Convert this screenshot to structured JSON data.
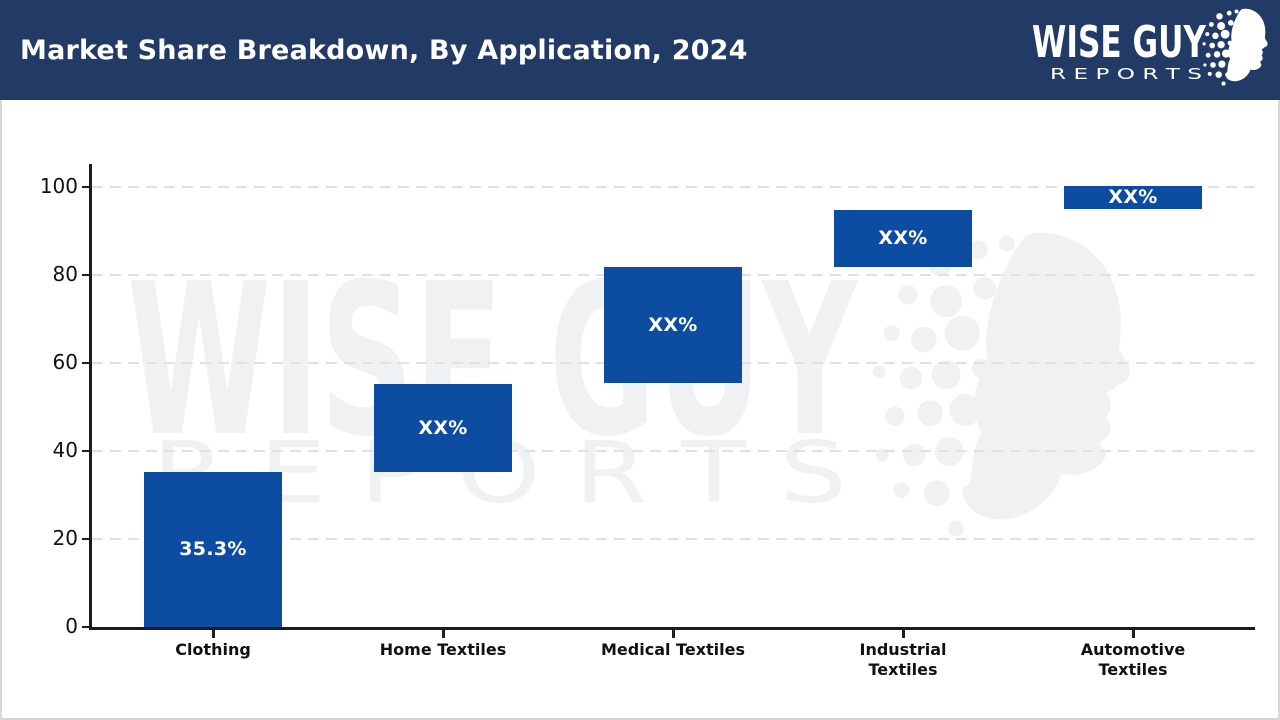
{
  "header": {
    "title": "Market Share Breakdown, By Application, 2024",
    "logo": {
      "primary": "WISE GUY",
      "secondary": "R E P O R T S"
    }
  },
  "watermark": {
    "primary": "WISE GUY",
    "secondary": "R E P O R T S"
  },
  "colors": {
    "header_bg": "#213a66",
    "bar_fill": "#0c4da2",
    "bar_label_text": "#ffffff",
    "grid_line": "#e1e1e1",
    "axis_line": "#1c1c1c",
    "tick_label_text": "#111111",
    "watermark_fill": "#f0f1f3",
    "background": "#ffffff"
  },
  "chart_data": {
    "type": "bar",
    "subtype": "waterfall",
    "title": "Market Share Breakdown, By Application, 2024",
    "xlabel": "",
    "ylabel": "",
    "ylim": [
      0,
      105
    ],
    "y_ticks": [
      0,
      20,
      40,
      60,
      80,
      100
    ],
    "grid": "horizontal-dashed",
    "legend": "none",
    "categories": [
      "Clothing",
      "Home Textiles",
      "Medical Textiles",
      "Industrial Textiles",
      "Automotive Textiles"
    ],
    "x_tick_labels": [
      "Clothing",
      "Home Textiles",
      "Medical Textiles",
      "Industrial\nTextiles",
      "Automotive\nTextiles"
    ],
    "segments": [
      {
        "category": "Clothing",
        "start": 0,
        "end": 35.3,
        "value_label": "35.3%"
      },
      {
        "category": "Home Textiles",
        "start": 35.3,
        "end": 55.2,
        "value_label": "XX%"
      },
      {
        "category": "Medical Textiles",
        "start": 55.4,
        "end": 81.8,
        "value_label": "XX%"
      },
      {
        "category": "Industrial Textiles",
        "start": 81.8,
        "end": 94.8,
        "value_label": "XX%"
      },
      {
        "category": "Automotive Textiles",
        "start": 95.1,
        "end": 100.3,
        "value_label": "XX%"
      }
    ]
  }
}
